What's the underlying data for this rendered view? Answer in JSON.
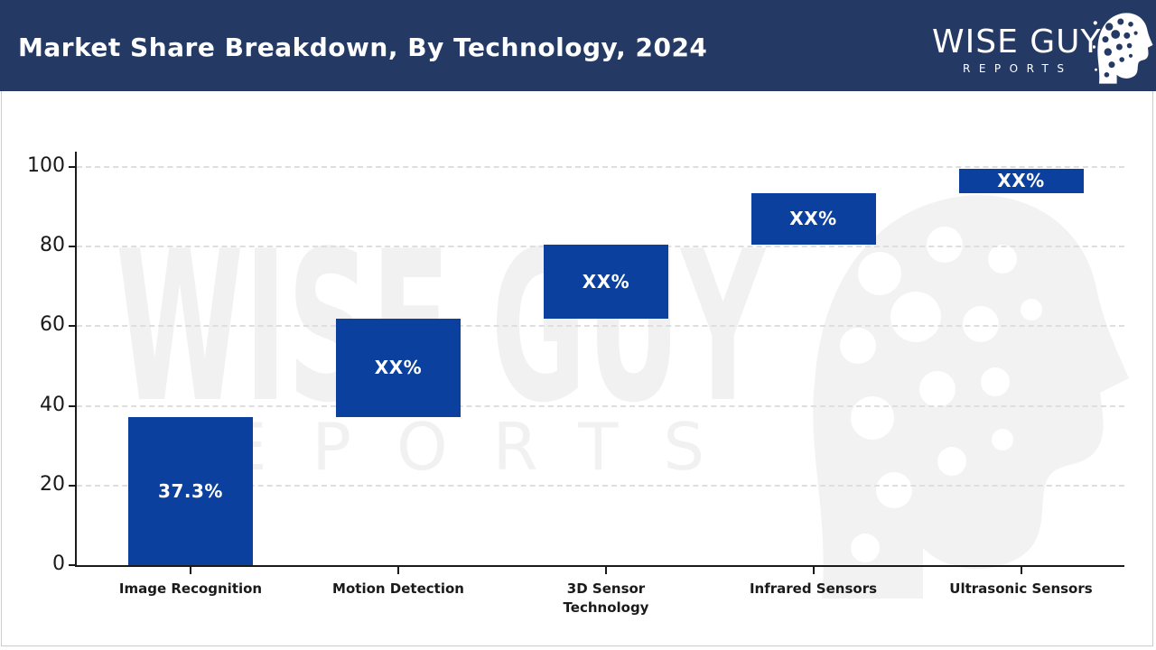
{
  "header": {
    "title": "Market Share Breakdown, By Technology, 2024",
    "logo": {
      "line1": "WISE GUY",
      "line2": "REPORTS"
    }
  },
  "watermark": {
    "line1": "WISE GUY",
    "line2": "REPORTS"
  },
  "colors": {
    "header_bg": "#243A64",
    "bar": "#0B409F",
    "bar_label": "#ffffff",
    "axis": "#1a1a1a",
    "grid": "#dedede",
    "watermark": "#f1f1f2"
  },
  "chart_data": {
    "type": "bar",
    "subtype": "waterfall",
    "title": "Market Share Breakdown, By Technology, 2024",
    "xlabel": "",
    "ylabel": "",
    "ylim": [
      0,
      105
    ],
    "y_ticks": [
      0,
      20,
      40,
      60,
      80,
      100
    ],
    "grid": "horizontal-dashed",
    "legend": "none",
    "categories": [
      "Image Recognition",
      "Motion Detection",
      "3D Sensor\nTechnology",
      "Infrared Sensors",
      "Ultrasonic Sensors"
    ],
    "segments": [
      {
        "category": "Image Recognition",
        "start": 0,
        "end": 37.3,
        "label": "37.3%"
      },
      {
        "category": "Motion Detection",
        "start": 37.3,
        "end": 62.0,
        "label": "XX%"
      },
      {
        "category": "3D Sensor Technology",
        "start": 62.0,
        "end": 80.5,
        "label": "XX%"
      },
      {
        "category": "Infrared Sensors",
        "start": 80.5,
        "end": 93.5,
        "label": "XX%"
      },
      {
        "category": "Ultrasonic Sensors",
        "start": 93.5,
        "end": 99.5,
        "label": "XX%"
      }
    ]
  }
}
